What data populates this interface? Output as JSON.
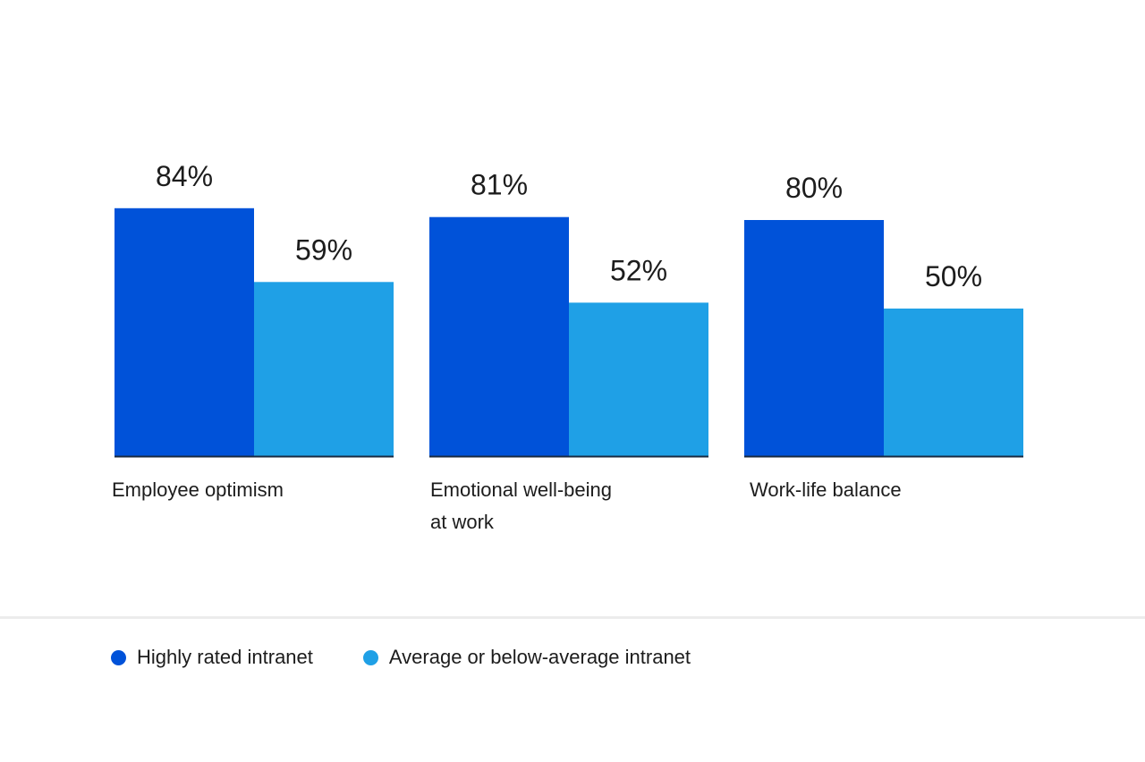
{
  "chart_data": {
    "type": "bar",
    "categories": [
      "Employee optimism",
      "Emotional well-being at work",
      "Work-life balance"
    ],
    "category_lines": [
      [
        "Employee optimism"
      ],
      [
        "Emotional well-being",
        "at work"
      ],
      [
        "Work-life balance"
      ]
    ],
    "series": [
      {
        "name": "Highly rated intranet",
        "values": [
          84,
          81,
          80
        ],
        "color": "#0052d9"
      },
      {
        "name": "Average or below-average intranet",
        "values": [
          59,
          52,
          50
        ],
        "color": "#1fa0e6"
      }
    ],
    "value_suffix": "%",
    "ylim": [
      0,
      100
    ],
    "grid": false,
    "legend_position": "bottom-left",
    "baseline_color": "#1a2a40"
  }
}
